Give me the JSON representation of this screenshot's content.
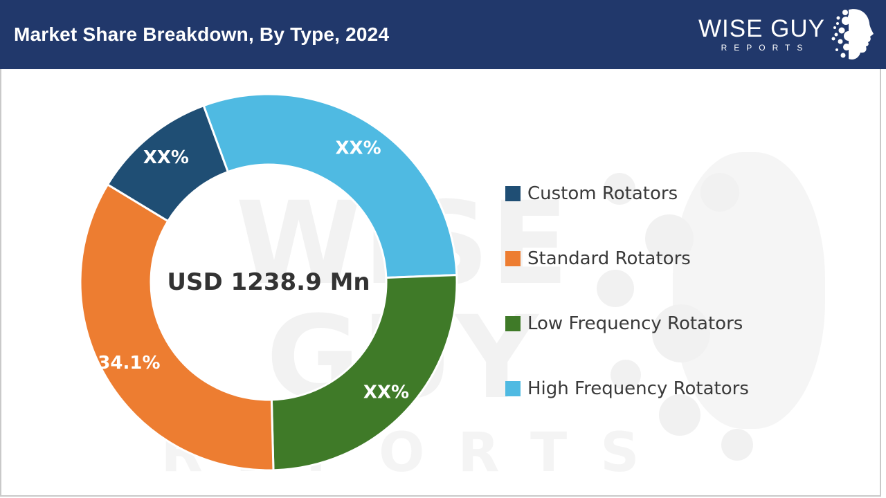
{
  "header": {
    "title": "Market Share Breakdown, By Type, 2024",
    "bg_color": "#21386B",
    "logo": {
      "line1": "WISE GUY",
      "line2": "REPORTS"
    }
  },
  "watermark": {
    "line1": "WISE GUY",
    "line2": "REPORTS"
  },
  "chart_data": {
    "type": "pie",
    "subtype": "donut",
    "title": "Market Share Breakdown, By Type, 2024",
    "center_label": "USD 1238.9 Mn",
    "start_angle_deg": 110.2,
    "direction": "clockwise",
    "legend_position": "right",
    "segments": [
      {
        "name": "High Frequency Rotators",
        "label": "XX%",
        "value_pct": 30.0,
        "color": "#4FBAE2"
      },
      {
        "name": "Low Frequency Rotators",
        "label": "XX%",
        "value_pct": 25.2,
        "color": "#3F7A28"
      },
      {
        "name": "Standard Rotators",
        "label": "34.1%",
        "value_pct": 34.1,
        "color": "#ED7D31"
      },
      {
        "name": "Custom Rotators",
        "label": "XX%",
        "value_pct": 10.7,
        "color": "#1F4E74"
      }
    ]
  },
  "legend": {
    "items": [
      {
        "label": "Custom Rotators",
        "color": "#1F4E74"
      },
      {
        "label": "Standard Rotators",
        "color": "#ED7D31"
      },
      {
        "label": "Low Frequency Rotators",
        "color": "#3F7A28"
      },
      {
        "label": "High Frequency Rotators",
        "color": "#4FBAE2"
      }
    ]
  }
}
